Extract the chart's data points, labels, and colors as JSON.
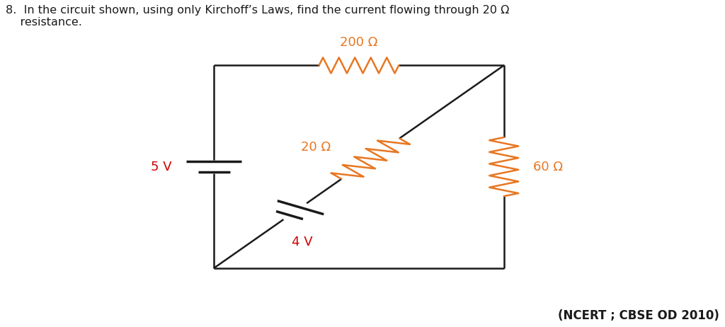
{
  "title_text": "8.  In the circuit shown, using only Kirchoff’s Laws, find the current flowing through 20 Ω\n    resistance.",
  "source_text": "(NCERT ; CBSE OD 2010)",
  "label_200R": "200 Ω",
  "label_20R": "20 Ω",
  "label_60R": "60 Ω",
  "label_5V": "5 V",
  "label_4V": "4 V",
  "color_orange": "#E87722",
  "color_red": "#CC0000",
  "color_black": "#1a1a1a",
  "color_bg": "#ffffff",
  "TL": [
    0.295,
    0.8
  ],
  "TR": [
    0.695,
    0.8
  ],
  "BL": [
    0.295,
    0.18
  ],
  "BR": [
    0.695,
    0.18
  ]
}
